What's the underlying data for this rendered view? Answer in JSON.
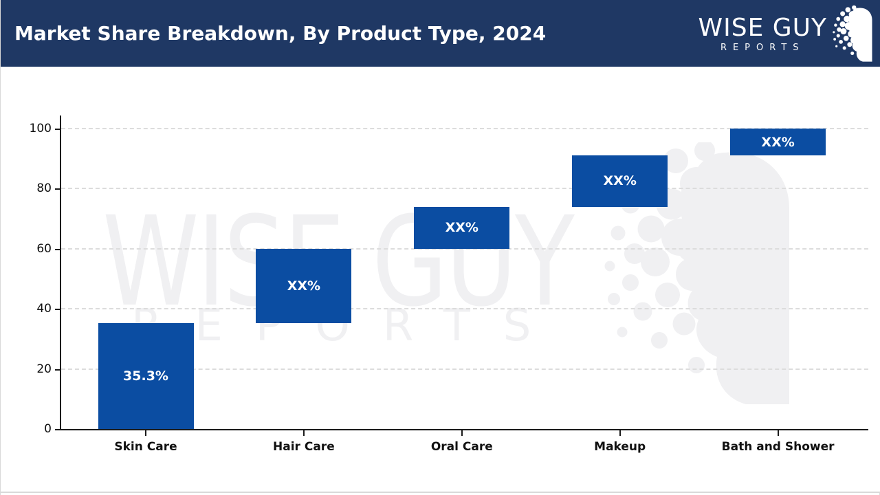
{
  "header": {
    "title": "Market Share Breakdown, By Product Type, 2024",
    "logo": {
      "line1": "WISE GUY",
      "line2": "REPORTS"
    }
  },
  "watermark": {
    "line1": "WISE GUY",
    "line2": "REPORTS"
  },
  "colors": {
    "header_bg": "#1F3864",
    "bar": "#0B4DA2",
    "bar_label": "#FFFFFF",
    "grid": "#DCDCDC",
    "axis": "#1A1A1A",
    "watermark": "#F0F0F2"
  },
  "chart_data": {
    "type": "bar",
    "subtype": "waterfall",
    "title": "Market Share Breakdown, By Product Type, 2024",
    "xlabel": "",
    "ylabel": "",
    "categories": [
      "Skin Care",
      "Hair Care",
      "Oral Care",
      "Makeup",
      "Bath and Shower"
    ],
    "segments": [
      {
        "category": "Skin Care",
        "start": 0,
        "end": 35.3,
        "label": "35.3%"
      },
      {
        "category": "Hair Care",
        "start": 35.3,
        "end": 60,
        "label": "XX%"
      },
      {
        "category": "Oral Care",
        "start": 60,
        "end": 74,
        "label": "XX%"
      },
      {
        "category": "Makeup",
        "start": 74,
        "end": 91,
        "label": "XX%"
      },
      {
        "category": "Bath and Shower",
        "start": 91,
        "end": 100,
        "label": "XX%"
      }
    ],
    "yticks": [
      0,
      20,
      40,
      60,
      80,
      100
    ],
    "ylim": [
      0,
      104
    ],
    "grid": "horizontal-dashed",
    "legend": "none",
    "bar_color": "#0B4DA2"
  }
}
